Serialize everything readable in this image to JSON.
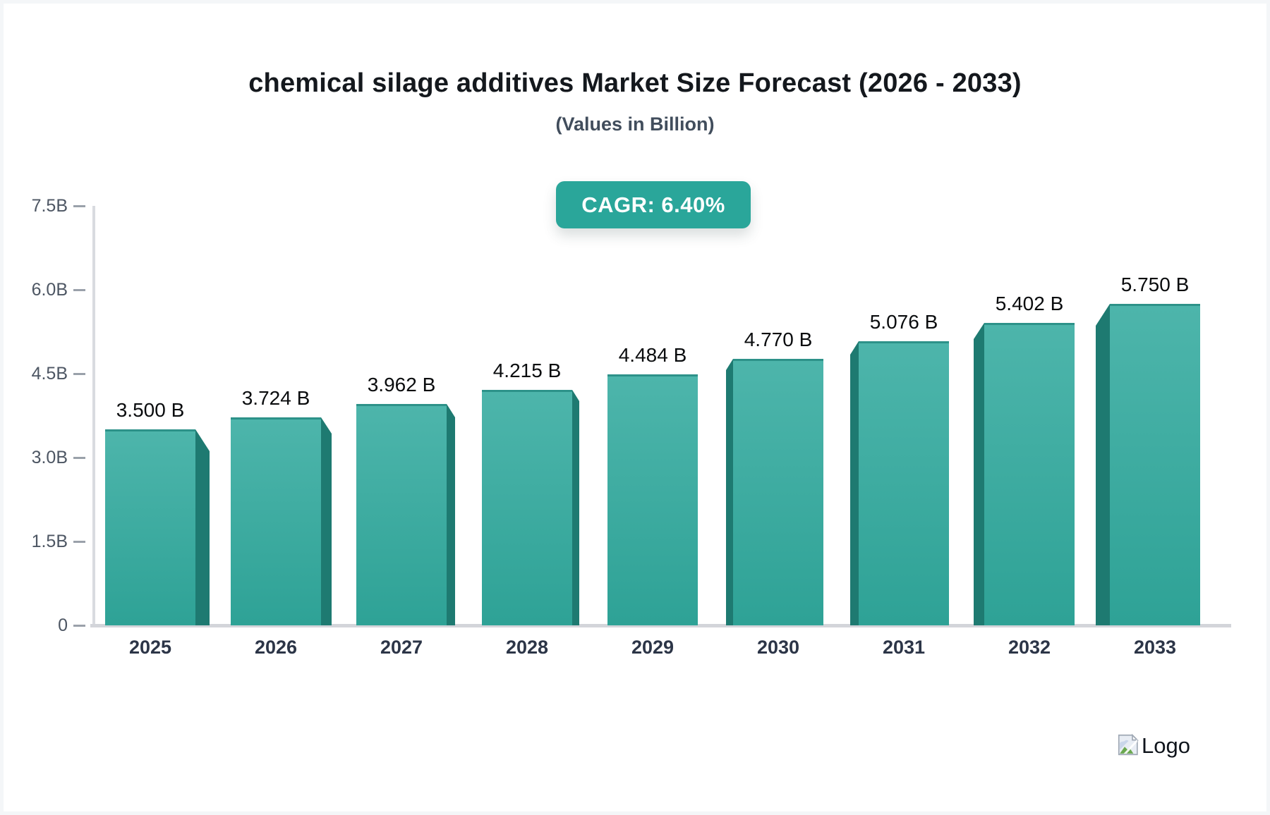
{
  "header": {
    "title": "chemical silage additives Market Size Forecast (2026 - 2033)",
    "subtitle": "(Values in Billion)",
    "cagr_label": "CAGR: 6.40%"
  },
  "footer": {
    "logo_text": "Logo",
    "logo_icon": "broken-image-icon"
  },
  "colors": {
    "bar_face_top": "#4db5ab",
    "bar_face_bottom": "#2ea296",
    "bar_top_edge": "#2d9289",
    "bar_side": "#1e7a71",
    "badge_bg": "#2aa69a",
    "badge_text": "#ffffff",
    "axis_line": "#d9dbe0",
    "baseline": "#d3d5da",
    "tick_dash": "#9aa1aa",
    "tick_text": "#4d5663",
    "year_text": "#2c3547",
    "value_text": "#0a0c0e",
    "title_text": "#14181d",
    "subtitle_text": "#414d5c",
    "logo_text": "#10151c"
  },
  "chart_data": {
    "type": "bar",
    "title": "chemical silage additives Market Size Forecast (2026 - 2033)",
    "subtitle": "(Values in Billion)",
    "annotation": "CAGR: 6.40%",
    "categories": [
      "2025",
      "2026",
      "2027",
      "2028",
      "2029",
      "2030",
      "2031",
      "2032",
      "2033"
    ],
    "values": [
      3.5,
      3.724,
      3.962,
      4.215,
      4.484,
      4.77,
      5.076,
      5.402,
      5.75
    ],
    "value_labels": [
      "3.500 B",
      "3.724 B",
      "3.962 B",
      "4.215 B",
      "4.484 B",
      "4.770 B",
      "5.076 B",
      "5.402 B",
      "5.750 B"
    ],
    "unit": "Billion",
    "xlabel": "",
    "ylabel": "",
    "y_ticks": [
      {
        "label": "0",
        "value": 0
      },
      {
        "label": "1.5B",
        "value": 1.5
      },
      {
        "label": "3.0B",
        "value": 3.0
      },
      {
        "label": "4.5B",
        "value": 4.5
      },
      {
        "label": "6.0B",
        "value": 6.0
      },
      {
        "label": "7.5B",
        "value": 7.5
      }
    ],
    "ylim": [
      0,
      7.5
    ],
    "grid": false,
    "legend": false,
    "bar_style": "3d-perspective"
  }
}
